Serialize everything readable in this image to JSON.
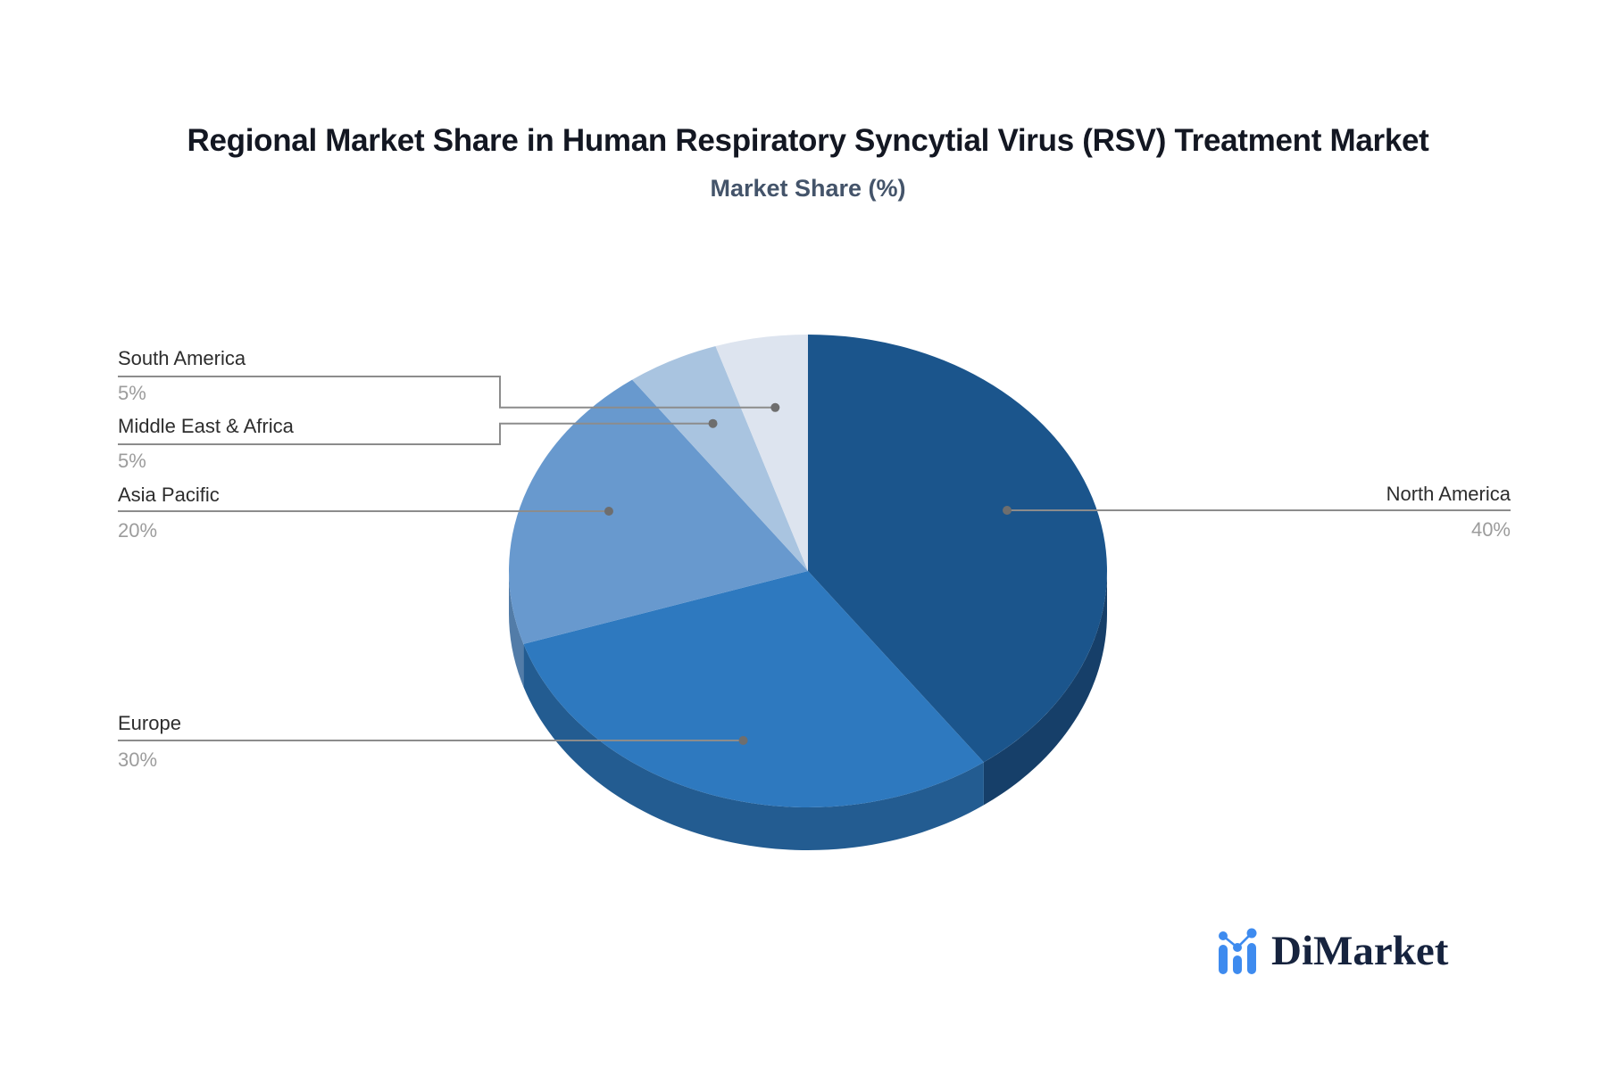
{
  "chart_data": {
    "type": "pie",
    "style": "3d-pie",
    "title": "Regional Market Share in Human Respiratory Syncytial Virus (RSV) Treatment Market",
    "subtitle": "Market Share (%)",
    "unit": "%",
    "categories": [
      "North America",
      "Europe",
      "Asia Pacific",
      "Middle East & Africa",
      "South America"
    ],
    "values": [
      40,
      30,
      20,
      5,
      5
    ],
    "legend_position": "none",
    "label_style": "callout-lines-with-dots",
    "slices": [
      {
        "label": "North America",
        "value": 40,
        "pct_label": "40%",
        "color": "#1B558C",
        "side_color": "#163F69"
      },
      {
        "label": "Europe",
        "value": 30,
        "pct_label": "30%",
        "color": "#2E79BF",
        "side_color": "#235C91"
      },
      {
        "label": "Asia Pacific",
        "value": 20,
        "pct_label": "20%",
        "color": "#6899CE",
        "side_color": "#527CA8"
      },
      {
        "label": "Middle East & Africa",
        "value": 5,
        "pct_label": "5%",
        "color": "#A9C4E0",
        "side_color": "#8BA2B9"
      },
      {
        "label": "South America",
        "value": 5,
        "pct_label": "5%",
        "color": "#DDE4EF",
        "side_color": "#B9C3D1"
      }
    ],
    "callout_color": "#8C8C8C",
    "dot_color": "#6E6E6E"
  },
  "logo": {
    "text": "DiMarket"
  }
}
